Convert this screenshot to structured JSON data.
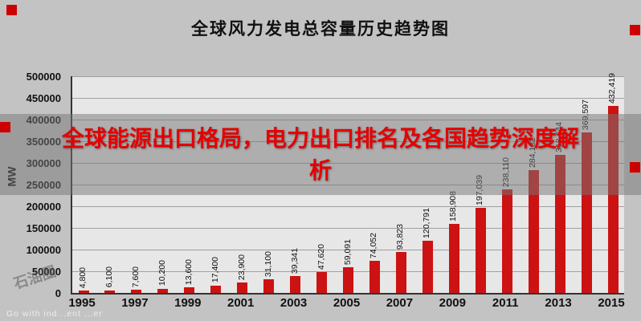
{
  "title": "全球风力发电总容量历史趋势图",
  "overlay": {
    "full_text": "全球能源出口格局，电力出口排名及各国趋势深度解析",
    "line1": "全球能源出口格局，电力出口排名及各国趋势深度解",
    "line2": "析",
    "color": "#e60000"
  },
  "watermark": {
    "brand": "石油圈",
    "tagline": "Go with ind...ent ...er"
  },
  "colors": {
    "page_bg": "#c3c3c3",
    "plot_bg": "#e7e7e7",
    "grid": "#9f9f9f",
    "bar_red": "#cc1212",
    "accent_red": "#cc0000",
    "overlay_text_red": "#e60000"
  },
  "chart_data": {
    "type": "bar",
    "title": "全球风力发电总容量历史趋势图",
    "xlabel": "",
    "ylabel": "MW",
    "ylim": [
      0,
      500000
    ],
    "yticks": [
      0,
      50000,
      100000,
      150000,
      200000,
      250000,
      300000,
      350000,
      400000,
      450000,
      500000
    ],
    "grid": true,
    "legend": false,
    "bar_color": "#cc1212",
    "categories": [
      1995,
      1996,
      1997,
      1998,
      1999,
      2000,
      2001,
      2002,
      2003,
      2004,
      2005,
      2006,
      2007,
      2008,
      2009,
      2010,
      2011,
      2012,
      2013,
      2014,
      2015
    ],
    "xticks_shown": [
      1995,
      1997,
      1999,
      2001,
      2003,
      2005,
      2007,
      2009,
      2011,
      2013,
      2015
    ],
    "values": [
      4800,
      6100,
      7600,
      10200,
      13600,
      17400,
      23900,
      31100,
      39341,
      47620,
      59091,
      74052,
      93823,
      120791,
      158908,
      197039,
      238110,
      284132,
      318644,
      369597,
      432419
    ],
    "labels": [
      "4,800",
      "6,100",
      "7,600",
      "10,200",
      "13,600",
      "17,400",
      "23,900",
      "31,100",
      "39,341",
      "47,620",
      "59,091",
      "74,052",
      "93,823",
      "120,791",
      "158,908",
      "197,039",
      "238,110",
      "284,132",
      "318,644",
      "369,597",
      "432,419"
    ]
  }
}
